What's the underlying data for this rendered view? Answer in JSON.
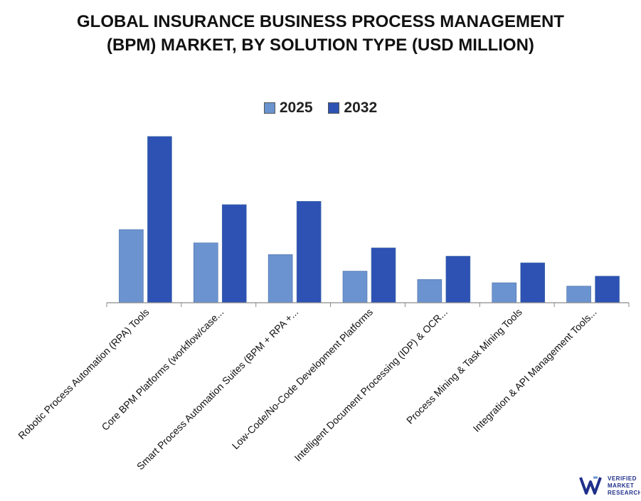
{
  "title_lines": [
    "GLOBAL INSURANCE BUSINESS PROCESS MANAGEMENT",
    "(BPM) MARKET, BY SOLUTION TYPE (USD MILLION)"
  ],
  "chart_data": {
    "type": "bar",
    "title": "GLOBAL INSURANCE BUSINESS PROCESS MANAGEMENT (BPM) MARKET, BY SOLUTION TYPE (USD MILLION)",
    "categories": [
      "Robotic Process Automation (RPA) Tools",
      "Core BPM Platforms (workflow/case...",
      "Smart Process Automation Suites (BPM + RPA +...",
      "Low-Code/No-Code Development Platforms",
      "Intelligent Document Processing (IDP) & OCR...",
      "Process Mining & Task Mining Tools",
      "Integration & API Management Tools..."
    ],
    "series": [
      {
        "name": "2025",
        "color": "#6b93cf",
        "values": [
          44,
          36,
          29,
          19,
          14,
          12,
          10
        ]
      },
      {
        "name": "2032",
        "color": "#2d52b3",
        "values": [
          100,
          59,
          61,
          33,
          28,
          24,
          16
        ]
      }
    ],
    "xlabel": "",
    "ylabel": "",
    "ylim": [
      0,
      100
    ],
    "grid": false,
    "legend": "top-center"
  },
  "logo": {
    "line1": "VERIFIED",
    "line2": "MARKET",
    "line3": "RESEARCH",
    "color": "#1f2f8a"
  }
}
